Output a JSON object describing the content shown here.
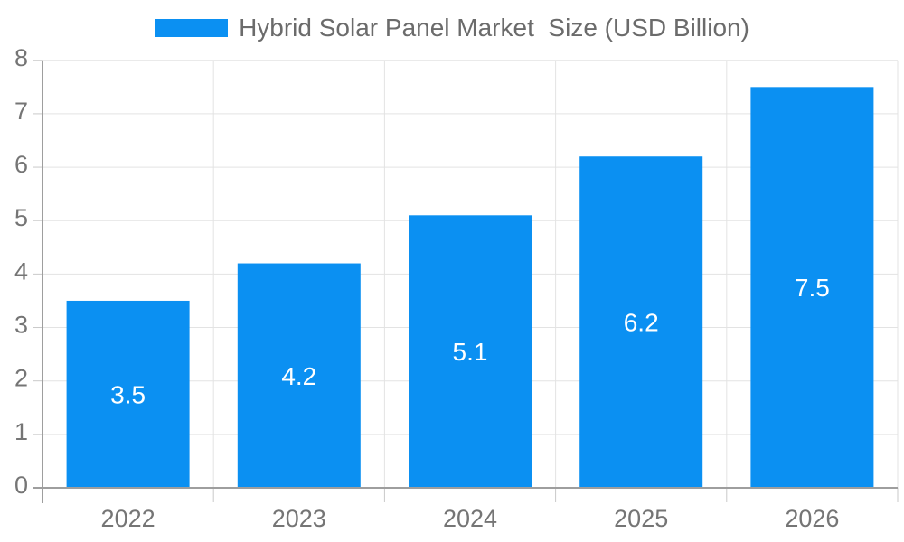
{
  "chart_data": {
    "type": "bar",
    "title": "Hybrid Solar Panel Market  Size (USD Billion)",
    "legend": {
      "label": "Hybrid Solar Panel Market  Size (USD Billion)",
      "position": "top-center",
      "swatch_color": "#0b90f2"
    },
    "categories": [
      "2022",
      "2023",
      "2024",
      "2025",
      "2026"
    ],
    "series": [
      {
        "name": "Hybrid Solar Panel Market  Size (USD Billion)",
        "values": [
          3.5,
          4.2,
          5.1,
          6.2,
          7.5
        ]
      }
    ],
    "value_labels": [
      "3.5",
      "4.2",
      "5.1",
      "6.2",
      "7.5"
    ],
    "xlabel": "",
    "ylabel": "",
    "ylim": [
      0,
      8
    ],
    "yticks": [
      0,
      1,
      2,
      3,
      4,
      5,
      6,
      7,
      8
    ],
    "grid": true,
    "colors": {
      "bar": "#0b90f2",
      "value_label": "#ffffff",
      "axis_text": "#757575",
      "grid_line": "#e3e3e3",
      "tick_line": "#c9c9c9",
      "axis_line": "#9e9e9e",
      "background": "#ffffff"
    }
  }
}
